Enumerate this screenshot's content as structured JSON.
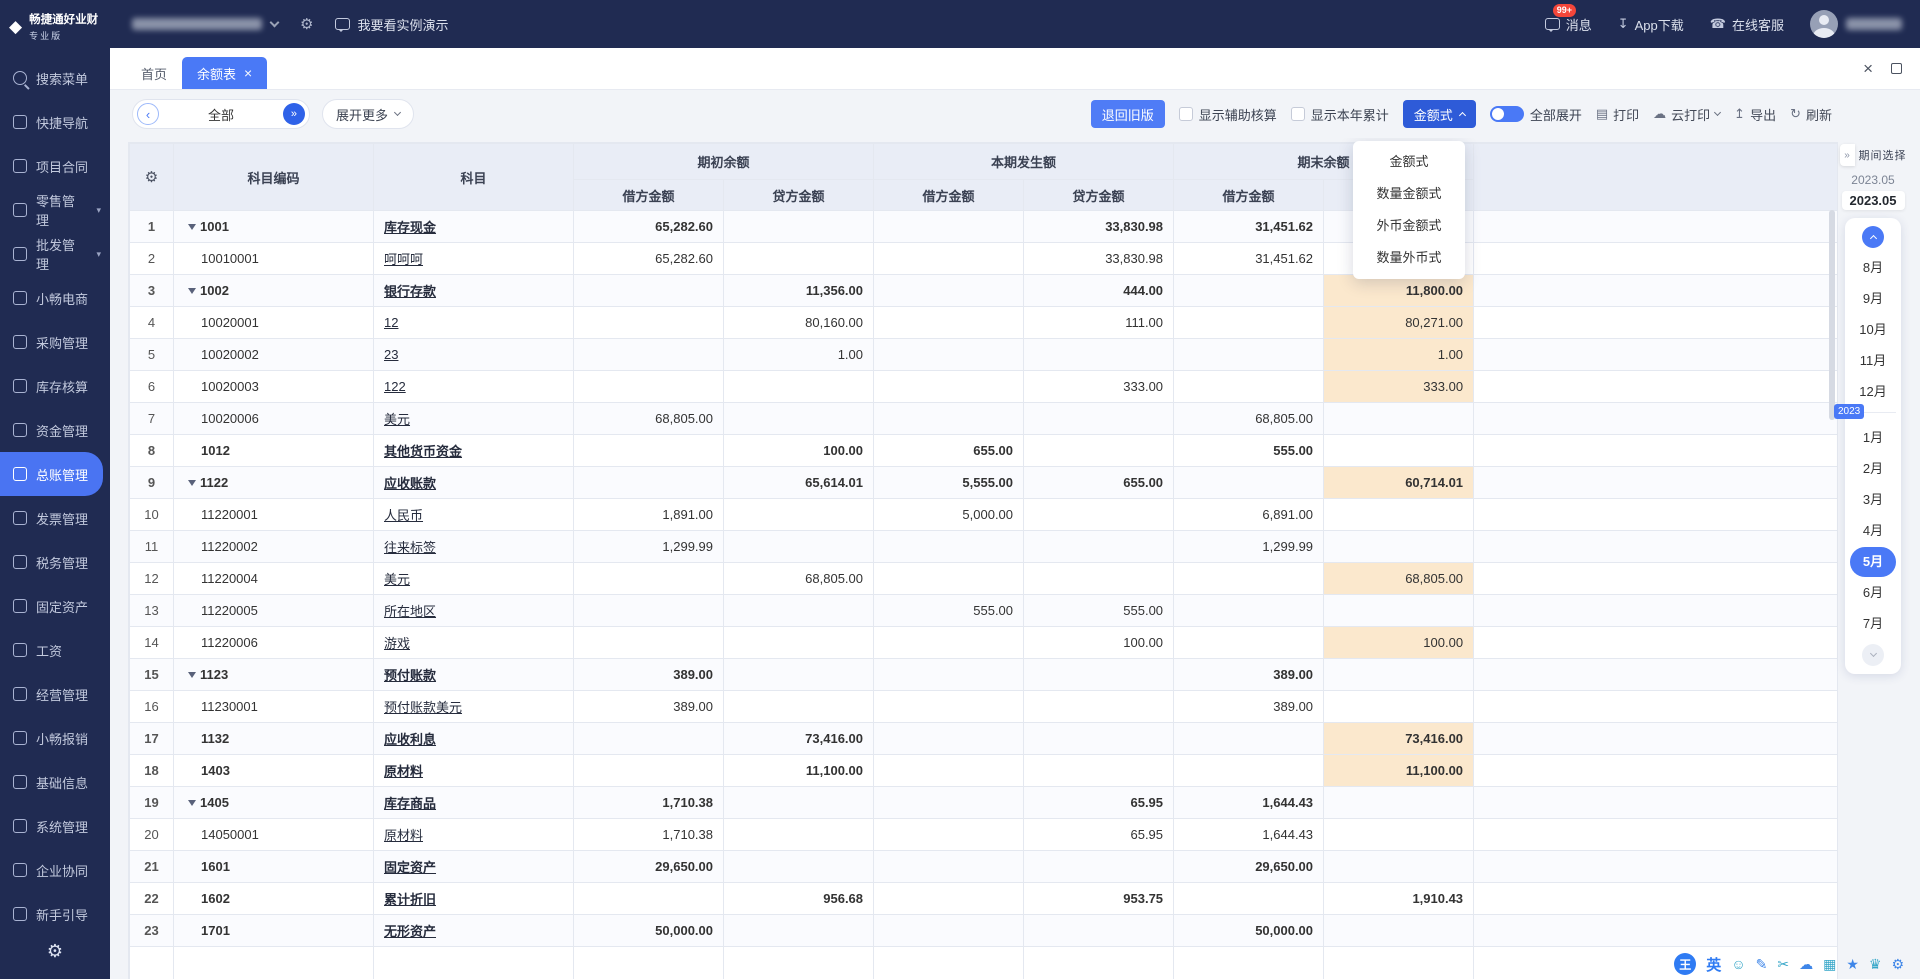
{
  "sidebar": {
    "logo_title": "畅捷通好业财",
    "logo_sub": "专业版",
    "items": [
      {
        "key": "search-menu",
        "label": "搜索菜单"
      },
      {
        "key": "quick-nav",
        "label": "快捷导航"
      },
      {
        "key": "project-contract",
        "label": "项目合同"
      },
      {
        "key": "retail",
        "label": "零售管理",
        "chevron": true
      },
      {
        "key": "wholesale",
        "label": "批发管理",
        "chevron": true
      },
      {
        "key": "ecommerce",
        "label": "小畅电商"
      },
      {
        "key": "purchase",
        "label": "采购管理"
      },
      {
        "key": "inventory",
        "label": "库存核算"
      },
      {
        "key": "funds",
        "label": "资金管理"
      },
      {
        "key": "general-ledger",
        "label": "总账管理",
        "active": true
      },
      {
        "key": "invoice",
        "label": "发票管理"
      },
      {
        "key": "tax",
        "label": "税务管理"
      },
      {
        "key": "fixed-assets",
        "label": "固定资产"
      },
      {
        "key": "salary",
        "label": "工资"
      },
      {
        "key": "operations",
        "label": "经营管理"
      },
      {
        "key": "expense",
        "label": "小畅报销"
      },
      {
        "key": "basic-info",
        "label": "基础信息"
      },
      {
        "key": "system",
        "label": "系统管理"
      },
      {
        "key": "collaboration",
        "label": "企业协同"
      },
      {
        "key": "beginner-guide",
        "label": "新手引导"
      }
    ]
  },
  "topbar": {
    "demo_link": "我要看实例演示",
    "messages_label": "消息",
    "messages_badge": "99+",
    "app_download_label": "App下载",
    "support_label": "在线客服"
  },
  "tabbar": {
    "home_tab": "首页",
    "active_tab": "余额表"
  },
  "toolbar": {
    "level_value": "全部",
    "expand_more": "展开更多",
    "back_to_old": "退回旧版",
    "show_aux": "显示辅助核算",
    "show_ytd": "显示本年累计",
    "format_button": "金额式",
    "expand_all": "全部展开",
    "print": "打印",
    "cloud_print": "云打印",
    "export": "导出",
    "refresh": "刷新"
  },
  "format_menu": {
    "items": [
      "金额式",
      "数量金额式",
      "外币金额式",
      "数量外币式"
    ]
  },
  "balance_table": {
    "col_code": "科目编码",
    "col_subject": "科目",
    "groups": [
      "期初余额",
      "本期发生额",
      "期末余额"
    ],
    "sub_debit": "借方金额",
    "sub_credit": "贷方金额",
    "rows": [
      {
        "seq": "1",
        "code": "1001",
        "name": "库存现金",
        "parent": true,
        "tri": true,
        "c": [
          "65,282.60",
          "",
          "",
          "33,830.98",
          "31,451.62",
          ""
        ]
      },
      {
        "seq": "2",
        "code": "10010001",
        "name": "呵呵呵",
        "c": [
          "65,282.60",
          "",
          "",
          "33,830.98",
          "31,451.62",
          ""
        ]
      },
      {
        "seq": "3",
        "code": "1002",
        "name": "银行存款",
        "parent": true,
        "tri": true,
        "hl": true,
        "c": [
          "",
          "11,356.00",
          "",
          "444.00",
          "",
          "11,800.00"
        ]
      },
      {
        "seq": "4",
        "code": "10020001",
        "name": "12",
        "hl": true,
        "c": [
          "",
          "80,160.00",
          "",
          "111.00",
          "",
          "80,271.00"
        ]
      },
      {
        "seq": "5",
        "code": "10020002",
        "name": "23",
        "hl": true,
        "c": [
          "",
          "1.00",
          "",
          "",
          "",
          "1.00"
        ]
      },
      {
        "seq": "6",
        "code": "10020003",
        "name": "122",
        "hl": true,
        "c": [
          "",
          "",
          "",
          "333.00",
          "",
          "333.00"
        ]
      },
      {
        "seq": "7",
        "code": "10020006",
        "name": "美元",
        "c": [
          "68,805.00",
          "",
          "",
          "",
          "68,805.00",
          ""
        ]
      },
      {
        "seq": "8",
        "code": "1012",
        "name": "其他货币资金",
        "parent": true,
        "c": [
          "",
          "100.00",
          "655.00",
          "",
          "555.00",
          ""
        ]
      },
      {
        "seq": "9",
        "code": "1122",
        "name": "应收账款",
        "parent": true,
        "tri": true,
        "hl": true,
        "c": [
          "",
          "65,614.01",
          "5,555.00",
          "655.00",
          "",
          "60,714.01"
        ]
      },
      {
        "seq": "10",
        "code": "11220001",
        "name": "人民币",
        "c": [
          "1,891.00",
          "",
          "5,000.00",
          "",
          "6,891.00",
          ""
        ]
      },
      {
        "seq": "11",
        "code": "11220002",
        "name": "往来标签",
        "c": [
          "1,299.99",
          "",
          "",
          "",
          "1,299.99",
          ""
        ]
      },
      {
        "seq": "12",
        "code": "11220004",
        "name": "美元",
        "hl": true,
        "c": [
          "",
          "68,805.00",
          "",
          "",
          "",
          "68,805.00"
        ]
      },
      {
        "seq": "13",
        "code": "11220005",
        "name": "所在地区",
        "c": [
          "",
          "",
          "555.00",
          "555.00",
          "",
          ""
        ]
      },
      {
        "seq": "14",
        "code": "11220006",
        "name": "游戏",
        "hl": true,
        "c": [
          "",
          "",
          "",
          "100.00",
          "",
          "100.00"
        ]
      },
      {
        "seq": "15",
        "code": "1123",
        "name": "预付账款",
        "parent": true,
        "tri": true,
        "c": [
          "389.00",
          "",
          "",
          "",
          "389.00",
          ""
        ]
      },
      {
        "seq": "16",
        "code": "11230001",
        "name": "预付账款美元",
        "c": [
          "389.00",
          "",
          "",
          "",
          "389.00",
          ""
        ]
      },
      {
        "seq": "17",
        "code": "1132",
        "name": "应收利息",
        "parent": true,
        "hl": true,
        "c": [
          "",
          "73,416.00",
          "",
          "",
          "",
          "73,416.00"
        ]
      },
      {
        "seq": "18",
        "code": "1403",
        "name": "原材料",
        "parent": true,
        "hl": true,
        "c": [
          "",
          "11,100.00",
          "",
          "",
          "",
          "11,100.00"
        ]
      },
      {
        "seq": "19",
        "code": "1405",
        "name": "库存商品",
        "parent": true,
        "tri": true,
        "c": [
          "1,710.38",
          "",
          "",
          "65.95",
          "1,644.43",
          ""
        ]
      },
      {
        "seq": "20",
        "code": "14050001",
        "name": "原材料",
        "c": [
          "1,710.38",
          "",
          "",
          "65.95",
          "1,644.43",
          ""
        ]
      },
      {
        "seq": "21",
        "code": "1601",
        "name": "固定资产",
        "parent": true,
        "c": [
          "29,650.00",
          "",
          "",
          "",
          "29,650.00",
          ""
        ]
      },
      {
        "seq": "22",
        "code": "1602",
        "name": "累计折旧",
        "parent": true,
        "c": [
          "",
          "956.68",
          "",
          "953.75",
          "",
          "1,910.43"
        ]
      },
      {
        "seq": "23",
        "code": "1701",
        "name": "无形资产",
        "parent": true,
        "c": [
          "50,000.00",
          "",
          "",
          "",
          "50,000.00",
          ""
        ]
      }
    ]
  },
  "period_panel": {
    "title": "期间选择",
    "range_start": "2023.05",
    "range_end": "2023.05",
    "months_top": [
      "8月",
      "9月",
      "10月",
      "11月",
      "12月"
    ],
    "year_badge": "2023",
    "months_bottom": [
      "1月",
      "2月",
      "3月",
      "4月",
      "5月",
      "6月",
      "7月"
    ],
    "selected_month": "5月"
  },
  "ime_bar": {
    "logo_text": "王",
    "lang_text": "英",
    "icons": [
      "smiley",
      "pen",
      "scissors",
      "cloud",
      "keyboard",
      "star",
      "trophy",
      "gear"
    ]
  }
}
